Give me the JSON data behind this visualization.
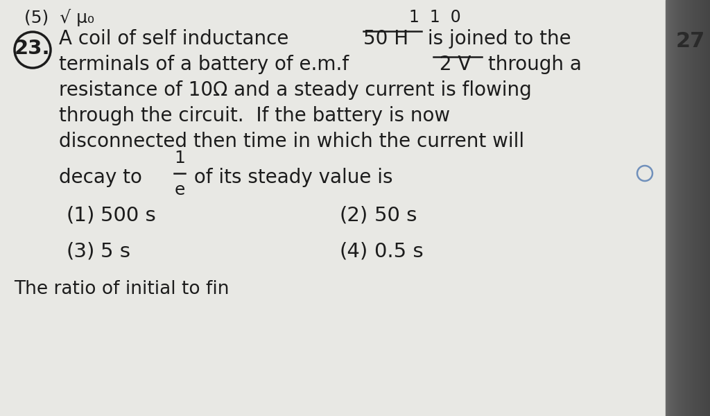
{
  "bg_color": "#e8e8e4",
  "page_color": "#f0efeb",
  "right_strip_color": "#6a6a72",
  "text_color": "#1c1c1c",
  "top_text": "(5)  √ μ₀",
  "top_right_text": "1  1  0",
  "q_number": "23.",
  "line1_pre": "A coil of self inductance ",
  "line1_ul": "50 H",
  "line1_post": " is joined to the",
  "line2_pre": "terminals of a battery of e.m.f",
  "line2_ul": " 2 V",
  "line2_post": " through a",
  "line3": "resistance of 10Ω and a steady current is flowing",
  "line4": "through the circuit.  If the battery is now",
  "line5": "disconnected then time in which the current will",
  "decay_pre": "decay to ",
  "decay_num": "1",
  "decay_den": "e",
  "decay_post": " of its steady value is",
  "opt1_label": "(1)",
  "opt1_val": "500 s",
  "opt2_label": "(2)",
  "opt2_val": "50 s",
  "opt3_label": "(3)",
  "opt3_val": "5 s",
  "opt4_label": "(4)",
  "opt4_val": "0.5 s",
  "bottom_text": "The ratio of initial to fin",
  "corner_label": "27",
  "circle_color": "#7090bb",
  "font_size": 20,
  "q_font_size": 21,
  "opt_font_size": 21
}
